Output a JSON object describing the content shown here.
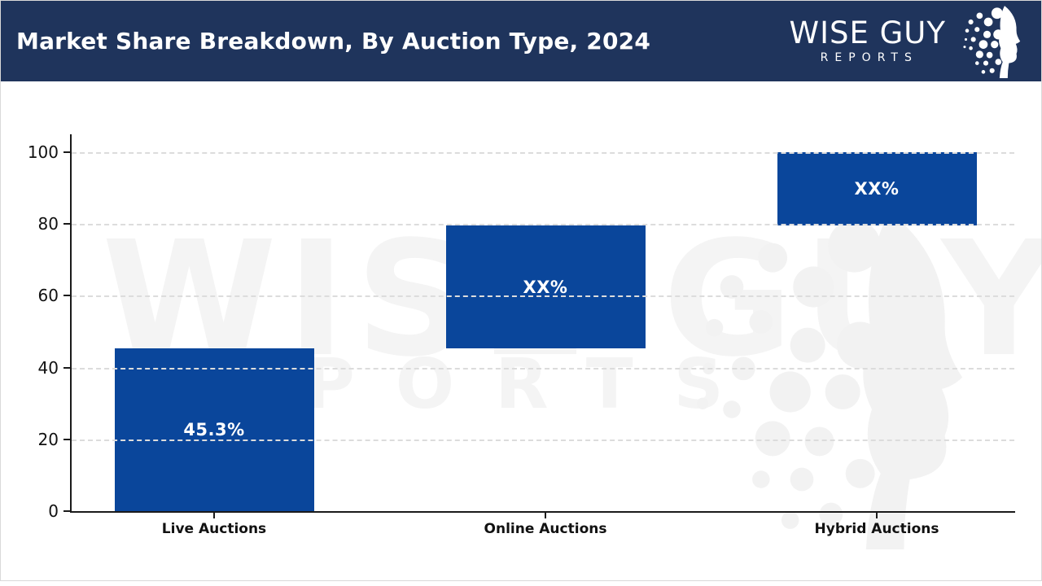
{
  "header": {
    "title": "Market Share Breakdown, By Auction Type, 2024",
    "logo": {
      "line1": "WISE GUY",
      "line2": "REPORTS",
      "face_icon": "dotted-face-profile"
    }
  },
  "watermark": {
    "line1": "WISE GUY",
    "line2": "REPORTS",
    "face_icon": "dotted-face-profile"
  },
  "colors": {
    "header_bg": "#1f345c",
    "bar_fill": "#0a469b",
    "bar_label_text": "#ffffff",
    "grid_line": "#dcdcdc",
    "axis_line": "#1a1a1a",
    "watermark": "#f4f4f4",
    "frame_border": "#d9d9d9"
  },
  "chart_data": {
    "type": "bar",
    "subtype": "waterfall",
    "title": "Market Share Breakdown, By Auction Type, 2024",
    "categories": [
      "Live Auctions",
      "Online Auctions",
      "Hybrid Auctions"
    ],
    "bars": [
      {
        "category": "Live Auctions",
        "start": 0,
        "end": 45.3,
        "label": "45.3%"
      },
      {
        "category": "Online Auctions",
        "start": 45.3,
        "end": 79.5,
        "label": "XX%"
      },
      {
        "category": "Hybrid Auctions",
        "start": 79.5,
        "end": 100,
        "label": "XX%"
      }
    ],
    "ylabel": "",
    "xlabel": "",
    "yticks": [
      0,
      20,
      40,
      60,
      80,
      100
    ],
    "ylim": [
      0,
      105
    ],
    "grid": true,
    "grid_style": "dashed",
    "legend": null,
    "bar_color": "#0a469b"
  }
}
